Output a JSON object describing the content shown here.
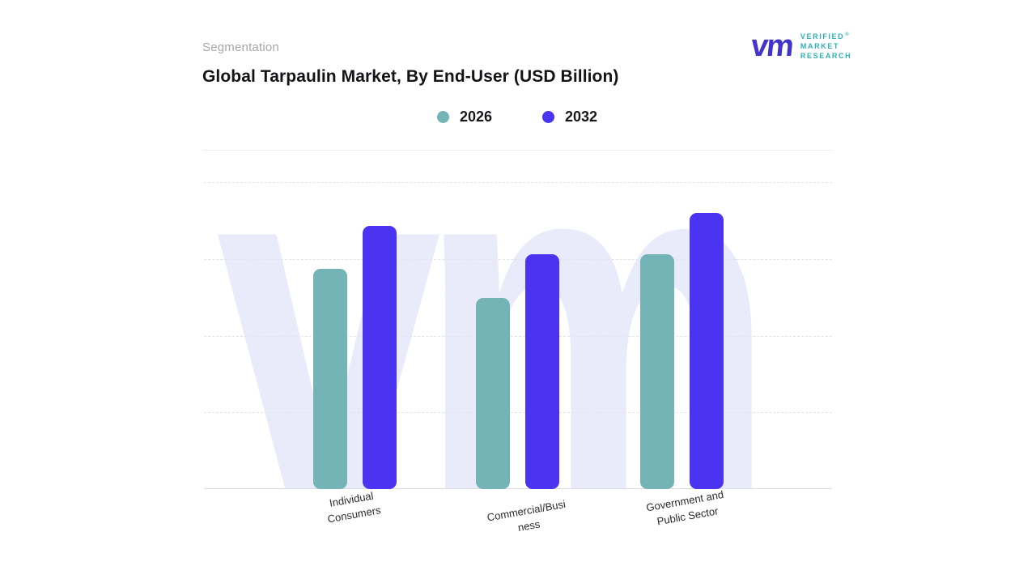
{
  "header": {
    "eyebrow": "Segmentation",
    "title": "Global Tarpaulin Market, By End-User (USD Billion)"
  },
  "logo": {
    "glyph": "vm",
    "lines": [
      "VERIFIED",
      "MARKET",
      "RESEARCH"
    ],
    "registered": "®",
    "glyph_color": "#4133cc",
    "text_color": "#2fb0b5"
  },
  "watermark": "vm",
  "legend": [
    {
      "label": "2026",
      "color": "#74b3b6"
    },
    {
      "label": "2032",
      "color": "#4b33f2"
    }
  ],
  "chart_data": {
    "type": "bar",
    "title": "Global Tarpaulin Market, By End-User (USD Billion)",
    "categories": [
      "Individual Consumers",
      "Commercial/Business",
      "Government and Public Sector"
    ],
    "categories_display": [
      [
        "Individual",
        "Consumers"
      ],
      [
        "Commercial/Busi",
        "ness"
      ],
      [
        "Government and",
        "Public Sector"
      ]
    ],
    "series": [
      {
        "name": "2026",
        "color": "#74b3b6",
        "values": [
          2.87,
          2.49,
          3.06
        ]
      },
      {
        "name": "2032",
        "color": "#4b33f2",
        "values": [
          3.43,
          3.06,
          3.6
        ]
      }
    ],
    "xlabel": "",
    "ylabel": "",
    "ylim": [
      0,
      4
    ],
    "y_tick_step": 1,
    "value_axis_visible": false,
    "grid": "horizontal-dashed",
    "legend_position": "top-center"
  }
}
